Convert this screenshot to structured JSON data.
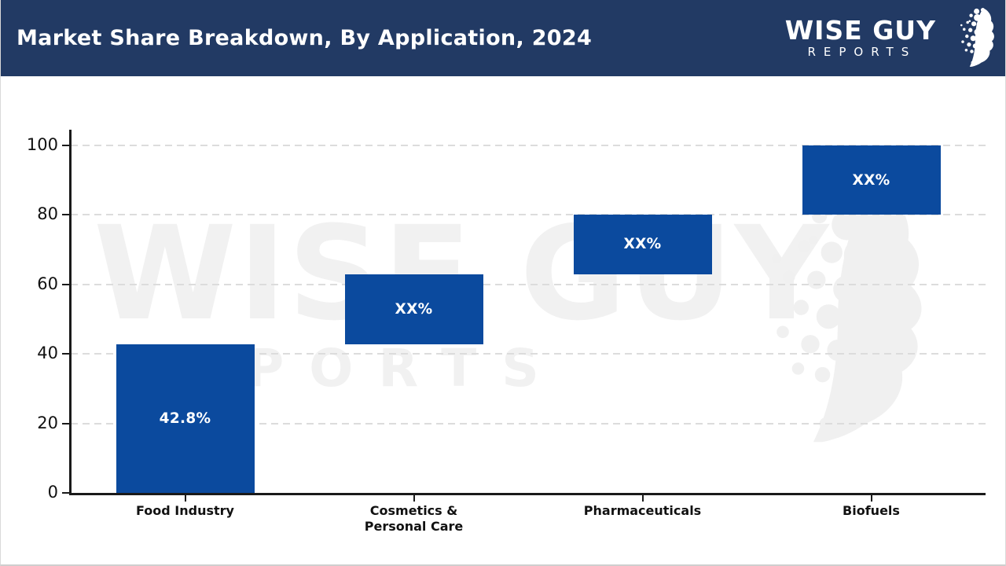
{
  "header": {
    "title": "Market Share Breakdown, By Application, 2024",
    "logo": {
      "line1": "WISE GUY",
      "line2": "REPORTS"
    }
  },
  "watermark": {
    "line1": "WISE GUY",
    "line2": "REPORTS"
  },
  "colors": {
    "header_bg": "#223A64",
    "bar_blue": "#0B4A9E",
    "grid_gray": "#DCDCDC",
    "axis_black": "#1A1A1A",
    "watermark_gray": "#F1F1F1",
    "bar_label_white": "#FFFFFF"
  },
  "chart_data": {
    "type": "bar",
    "subtype": "waterfall",
    "title": "Market Share Breakdown, By Application, 2024",
    "categories": [
      "Food Industry",
      "Cosmetics &\nPersonal Care",
      "Pharmaceuticals",
      "Biofuels"
    ],
    "segments": [
      {
        "category": "Food Industry",
        "start": 0,
        "end": 42.8,
        "label": "42.8%"
      },
      {
        "category": "Cosmetics & Personal Care",
        "start": 42.8,
        "end": 63,
        "label": "XX%"
      },
      {
        "category": "Pharmaceuticals",
        "start": 63,
        "end": 80,
        "label": "XX%"
      },
      {
        "category": "Biofuels",
        "start": 80,
        "end": 100,
        "label": "XX%"
      }
    ],
    "value_labels_masked": "XX% placeholders shown for all bars except Food Industry (42.8%)",
    "ylim": [
      0,
      100
    ],
    "yticks": [
      0,
      20,
      40,
      60,
      80,
      100
    ],
    "xlabel": "",
    "ylabel": "",
    "grid": "horizontal-dashed",
    "legend": "none"
  }
}
